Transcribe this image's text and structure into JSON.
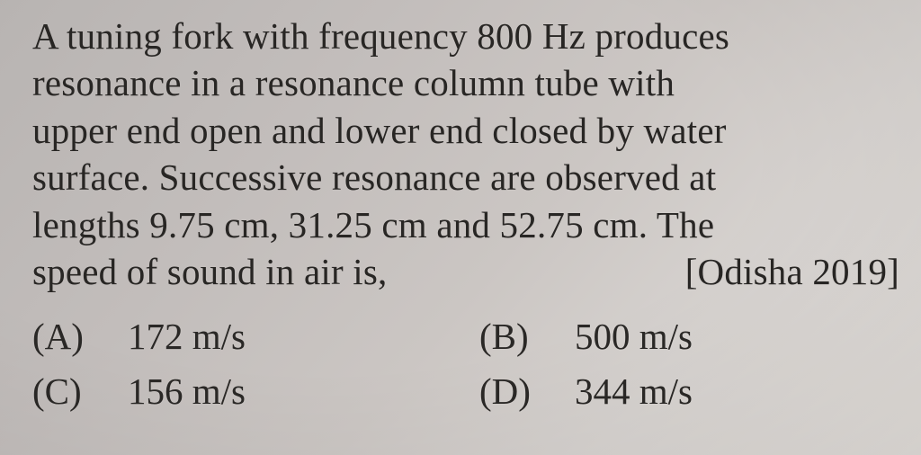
{
  "question": {
    "line1": "A tuning fork with frequency 800 Hz produces",
    "line2": "resonance in a resonance column tube with",
    "line3": "upper end open and lower end closed by water",
    "line4": "surface. Successive resonance are observed at",
    "line5": "lengths 9.75 cm, 31.25 cm and 52.75 cm. The",
    "line6_left": "speed of sound in air is,",
    "line6_right": "[Odisha 2019]"
  },
  "options": {
    "A": {
      "label": "(A)",
      "text": "172 m/s"
    },
    "B": {
      "label": "(B)",
      "text": "500 m/s"
    },
    "C": {
      "label": "(C)",
      "text": "156 m/s"
    },
    "D": {
      "label": "(D)",
      "text": "344 m/s"
    }
  },
  "style": {
    "text_color": "#282624",
    "bg_gradient_start": "#b8b4b2",
    "bg_gradient_end": "#e0dcd8",
    "font_size_pt": 31
  }
}
